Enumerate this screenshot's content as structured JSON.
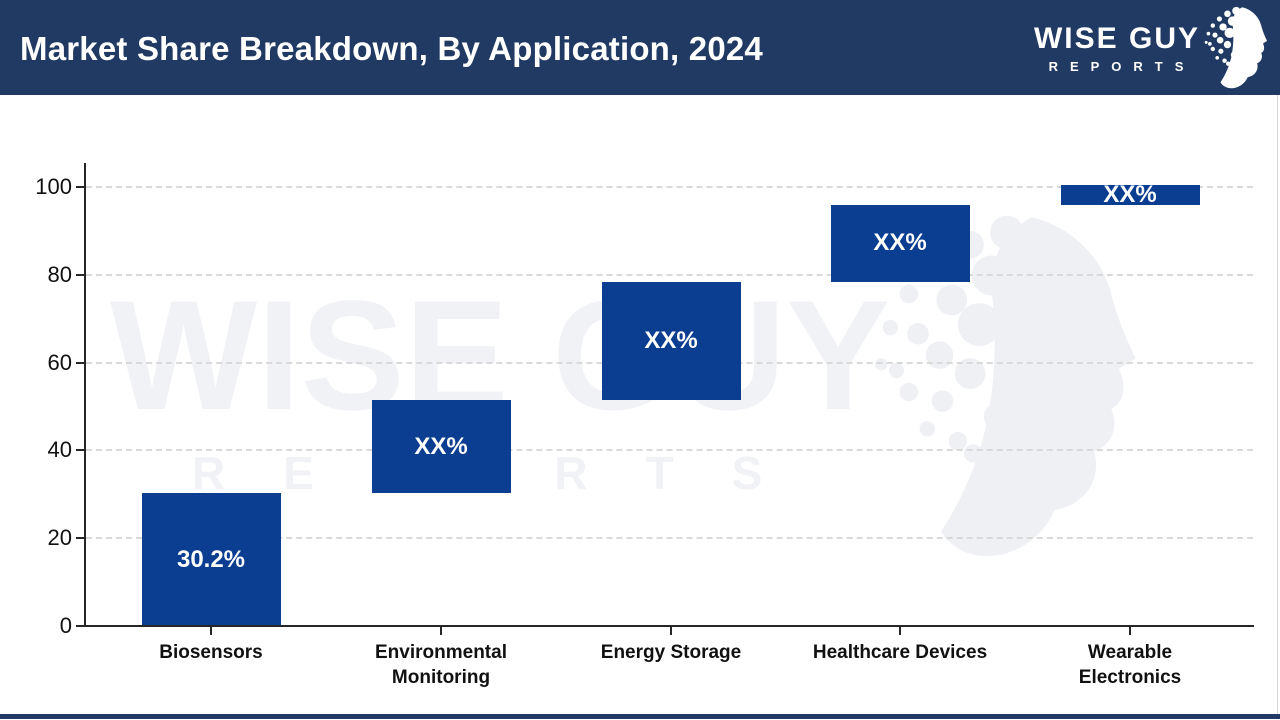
{
  "header": {
    "title": "Market Share Breakdown, By Application, 2024",
    "logo_line1": "WISE GUY",
    "logo_line2": "REPORTS",
    "bg_color": "#203a63"
  },
  "watermark": {
    "line1": "WISE GUY",
    "line2": "REPORTS"
  },
  "chart_data": {
    "type": "bar",
    "subtype": "waterfall",
    "title": "Market Share Breakdown, By Application, 2024",
    "categories": [
      "Biosensors",
      "Environmental\nMonitoring",
      "Energy Storage",
      "Healthcare Devices",
      "Wearable\nElectronics"
    ],
    "segments": [
      {
        "category": "Biosensors",
        "start": 0,
        "end": 30.2,
        "label": "30.2%"
      },
      {
        "category": "Environmental Monitoring",
        "start": 30.2,
        "end": 51.5,
        "label": "XX%"
      },
      {
        "category": "Energy Storage",
        "start": 51.5,
        "end": 78.3,
        "label": "XX%"
      },
      {
        "category": "Healthcare Devices",
        "start": 78.3,
        "end": 96,
        "label": "XX%"
      },
      {
        "category": "Wearable Electronics",
        "start": 96,
        "end": 100.4,
        "label": "XX%"
      }
    ],
    "y_ticks": [
      0,
      20,
      40,
      60,
      80,
      100
    ],
    "ylim": [
      0,
      105
    ],
    "xlabel": "",
    "ylabel": "",
    "grid": "horizontal-dashed",
    "legend": "none",
    "bar_color": "#0b3d91",
    "bar_label_color": "#ffffff",
    "axis_color": "#262626",
    "gridline_color": "#d9d9d9"
  },
  "footer": {
    "bg_color": "#203a63"
  }
}
